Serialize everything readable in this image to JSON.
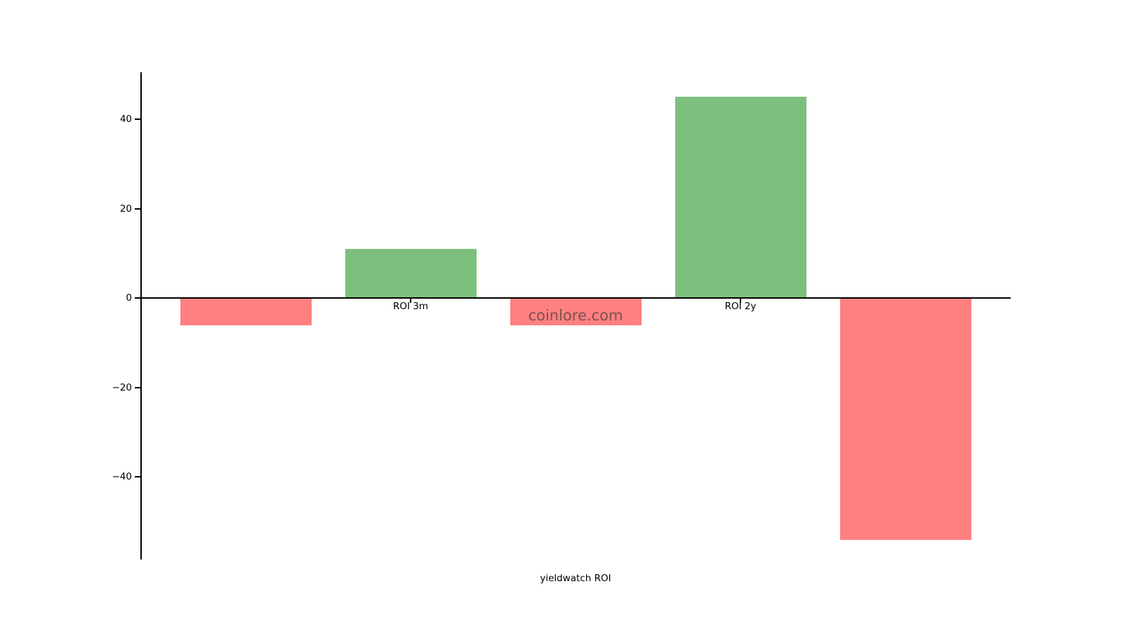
{
  "chart_data": {
    "type": "bar",
    "title": "",
    "xlabel": "yieldwatch ROI",
    "ylabel": "",
    "categories": [
      "",
      "ROI 3m",
      "",
      "ROI 2y",
      ""
    ],
    "values": [
      -6,
      11,
      -6,
      45,
      -54
    ],
    "positive_color": "#7dbf7d",
    "negative_color": "#ff8080",
    "axis_color": "#000000",
    "background_color": "#ffffff",
    "grid": false,
    "legend": null,
    "ylim": [
      -58.5,
      50.5
    ],
    "y_ticks": [
      {
        "value": 40,
        "label": "40"
      },
      {
        "value": 20,
        "label": "20"
      },
      {
        "value": 0,
        "label": "0"
      },
      {
        "value": -20,
        "label": "−20"
      },
      {
        "value": -40,
        "label": "−40"
      }
    ],
    "x_tick_labels": [
      {
        "index": 1,
        "label": "ROI 3m"
      },
      {
        "index": 3,
        "label": "ROI 2y"
      }
    ]
  },
  "watermark": {
    "text": "coinlore.com",
    "color": "#333333"
  }
}
